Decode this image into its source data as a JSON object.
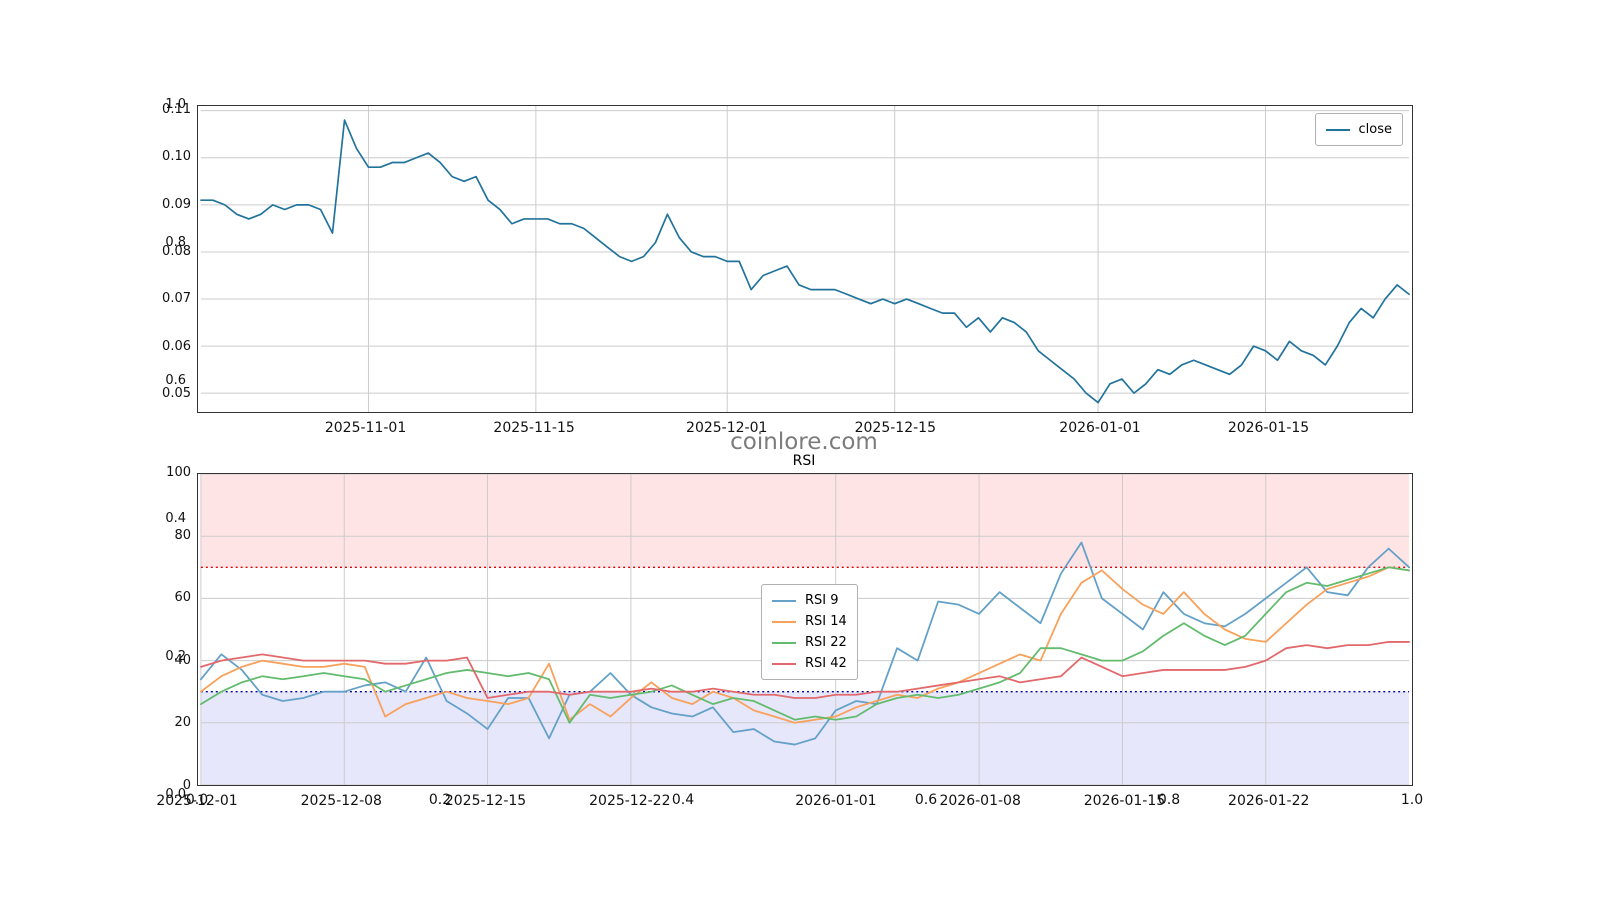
{
  "watermark": "coinlore.com",
  "colors": {
    "grid": "#cccccc",
    "spine": "#333333",
    "watermark_gray": "#7c7c7c"
  },
  "secondary_axis": {
    "yticks": [
      "1.0",
      "0.8",
      "0.6",
      "0.4",
      "0.2",
      "0.0"
    ],
    "xticks": [
      "0.0",
      "0.2",
      "0.4",
      "0.6",
      "0.8",
      "1.0"
    ]
  },
  "chart_data": [
    {
      "id": "price",
      "type": "line",
      "title": "",
      "legend_position": "upper right",
      "grid": true,
      "ylim": [
        0.046,
        0.111
      ],
      "yticks": [
        {
          "v": 0.05,
          "label": "0.05"
        },
        {
          "v": 0.06,
          "label": "0.06"
        },
        {
          "v": 0.07,
          "label": "0.07"
        },
        {
          "v": 0.08,
          "label": "0.08"
        },
        {
          "v": 0.09,
          "label": "0.09"
        },
        {
          "v": 0.1,
          "label": "0.10"
        },
        {
          "v": 0.11,
          "label": "0.11"
        }
      ],
      "xticks": [
        {
          "i": 14,
          "label": "2025-11-01"
        },
        {
          "i": 28,
          "label": "2025-11-15"
        },
        {
          "i": 44,
          "label": "2025-12-01"
        },
        {
          "i": 58,
          "label": "2025-12-15"
        },
        {
          "i": 75,
          "label": "2026-01-01"
        },
        {
          "i": 89,
          "label": "2026-01-15"
        }
      ],
      "series": [
        {
          "name": "close",
          "color": "#21739c",
          "width": 1.7,
          "values": [
            0.091,
            0.091,
            0.09,
            0.088,
            0.087,
            0.088,
            0.09,
            0.089,
            0.09,
            0.09,
            0.089,
            0.084,
            0.108,
            0.102,
            0.098,
            0.098,
            0.099,
            0.099,
            0.1,
            0.101,
            0.099,
            0.096,
            0.095,
            0.096,
            0.091,
            0.089,
            0.086,
            0.087,
            0.087,
            0.087,
            0.086,
            0.086,
            0.085,
            0.083,
            0.081,
            0.079,
            0.078,
            0.079,
            0.082,
            0.088,
            0.083,
            0.08,
            0.079,
            0.079,
            0.078,
            0.078,
            0.072,
            0.075,
            0.076,
            0.077,
            0.073,
            0.072,
            0.072,
            0.072,
            0.071,
            0.07,
            0.069,
            0.07,
            0.069,
            0.07,
            0.069,
            0.068,
            0.067,
            0.067,
            0.064,
            0.066,
            0.063,
            0.066,
            0.065,
            0.063,
            0.059,
            0.057,
            0.055,
            0.053,
            0.05,
            0.048,
            0.052,
            0.053,
            0.05,
            0.052,
            0.055,
            0.054,
            0.056,
            0.057,
            0.056,
            0.055,
            0.054,
            0.056,
            0.06,
            0.059,
            0.057,
            0.061,
            0.059,
            0.058,
            0.056,
            0.06,
            0.065,
            0.068,
            0.066,
            0.07,
            0.073,
            0.071
          ]
        }
      ]
    },
    {
      "id": "rsi",
      "type": "line",
      "title": "RSI",
      "legend_position": "center",
      "grid": true,
      "ylim": [
        0,
        100
      ],
      "yticks": [
        {
          "v": 0,
          "label": "0"
        },
        {
          "v": 20,
          "label": "20"
        },
        {
          "v": 40,
          "label": "40"
        },
        {
          "v": 60,
          "label": "60"
        },
        {
          "v": 80,
          "label": "80"
        },
        {
          "v": 100,
          "label": "100"
        }
      ],
      "xticks": [
        {
          "i": 0,
          "label": "2025-12-01"
        },
        {
          "i": 7,
          "label": "2025-12-08"
        },
        {
          "i": 14,
          "label": "2025-12-15"
        },
        {
          "i": 21,
          "label": "2025-12-22"
        },
        {
          "i": 31,
          "label": "2026-01-01"
        },
        {
          "i": 38,
          "label": "2026-01-08"
        },
        {
          "i": 45,
          "label": "2026-01-15"
        },
        {
          "i": 52,
          "label": "2026-01-22"
        }
      ],
      "hlines": [
        {
          "v": 70,
          "color": "#dd0000",
          "name": "overbought-line"
        },
        {
          "v": 30,
          "color": "#000099",
          "name": "oversold-line"
        }
      ],
      "bands": [
        {
          "from": 70,
          "to": 100,
          "color": "rgba(255,30,40,0.12)",
          "name": "overbought-band"
        },
        {
          "from": 0,
          "to": 30,
          "color": "rgba(70,70,230,0.13)",
          "name": "oversold-band"
        }
      ],
      "series": [
        {
          "name": "RSI 9",
          "color": "#64a1c8",
          "width": 1.8,
          "values": [
            34,
            42,
            37,
            29,
            27,
            28,
            30,
            30,
            32,
            33,
            30,
            41,
            27,
            23,
            18,
            28,
            28,
            15,
            29,
            30,
            36,
            29,
            25,
            23,
            22,
            25,
            17,
            18,
            14,
            13,
            15,
            24,
            27,
            26,
            44,
            40,
            59,
            58,
            55,
            62,
            57,
            52,
            68,
            78,
            60,
            55,
            50,
            62,
            55,
            52,
            51,
            55,
            60,
            65,
            70,
            62,
            61,
            70,
            76,
            70
          ]
        },
        {
          "name": "RSI 14",
          "color": "#f8a15a",
          "width": 1.8,
          "values": [
            30,
            35,
            38,
            40,
            39,
            38,
            38,
            39,
            38,
            22,
            26,
            28,
            30,
            28,
            27,
            26,
            28,
            39,
            21,
            26,
            22,
            28,
            33,
            28,
            26,
            30,
            28,
            24,
            22,
            20,
            21,
            22,
            25,
            27,
            29,
            28,
            31,
            33,
            36,
            39,
            42,
            40,
            55,
            65,
            69,
            63,
            58,
            55,
            62,
            55,
            50,
            47,
            46,
            52,
            58,
            63,
            65,
            67,
            70,
            69
          ]
        },
        {
          "name": "RSI 22",
          "color": "#63bb6e",
          "width": 1.8,
          "values": [
            26,
            30,
            33,
            35,
            34,
            35,
            36,
            35,
            34,
            30,
            32,
            34,
            36,
            37,
            36,
            35,
            36,
            34,
            20,
            29,
            28,
            29,
            30,
            32,
            29,
            26,
            28,
            27,
            24,
            21,
            22,
            21,
            22,
            26,
            28,
            29,
            28,
            29,
            31,
            33,
            36,
            44,
            44,
            42,
            40,
            40,
            43,
            48,
            52,
            48,
            45,
            48,
            55,
            62,
            65,
            64,
            66,
            68,
            70,
            69
          ]
        },
        {
          "name": "RSI 42",
          "color": "#e2686b",
          "width": 1.8,
          "values": [
            38,
            40,
            41,
            42,
            41,
            40,
            40,
            40,
            40,
            39,
            39,
            40,
            40,
            41,
            28,
            29,
            30,
            30,
            29,
            30,
            30,
            30,
            31,
            30,
            30,
            31,
            30,
            29,
            29,
            28,
            28,
            29,
            29,
            30,
            30,
            31,
            32,
            33,
            34,
            35,
            33,
            34,
            35,
            41,
            38,
            35,
            36,
            37,
            37,
            37,
            37,
            38,
            40,
            44,
            45,
            44,
            45,
            45,
            46,
            46
          ]
        }
      ]
    }
  ]
}
